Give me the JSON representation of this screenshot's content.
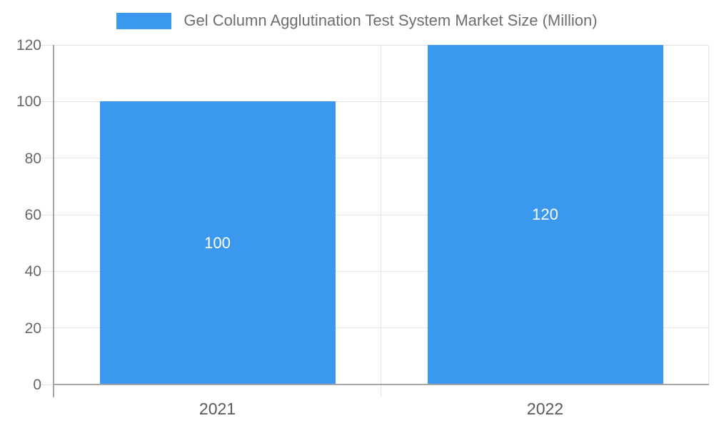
{
  "legend": {
    "label": "Gel Column Agglutination Test System Market Size (Million)"
  },
  "colors": {
    "bar": "#3a99ee",
    "axis": "#a6a6a6",
    "grid": "#e3e3e3",
    "y_tick_text": "#666666",
    "x_tick_text": "#595959",
    "legend_text": "#6e6e6e",
    "bar_label_text": "#ffffff"
  },
  "chart_data": {
    "type": "bar",
    "title": "Gel Column Agglutination Test System Market Size (Million)",
    "categories": [
      "2021",
      "2022"
    ],
    "series": [
      {
        "name": "Gel Column Agglutination Test System Market Size (Million)",
        "values": [
          100,
          120
        ]
      }
    ],
    "bar_labels": [
      "100",
      "120"
    ],
    "y_ticks": [
      0,
      20,
      40,
      60,
      80,
      100,
      120
    ],
    "ylim": [
      0,
      120
    ],
    "xlabel": "",
    "ylabel": "",
    "grid": true,
    "legend_position": "top"
  }
}
